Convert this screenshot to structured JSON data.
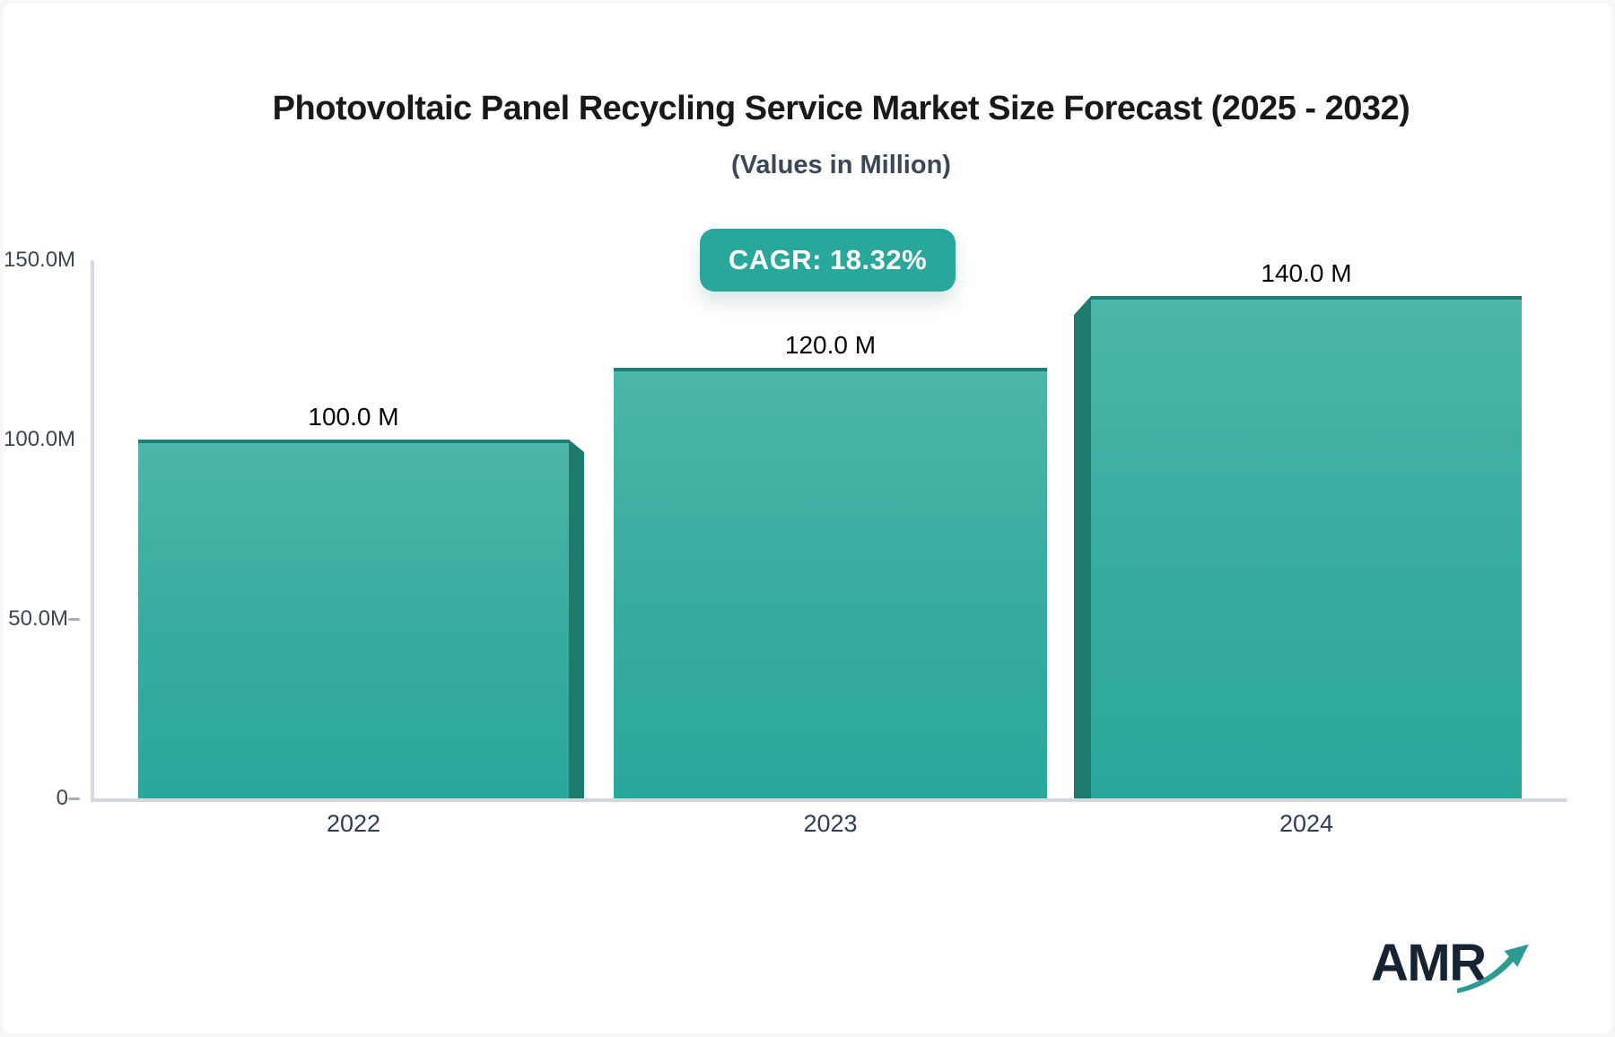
{
  "chart_data": {
    "type": "bar",
    "title": "Photovoltaic Panel Recycling Service Market Size Forecast (2025 - 2032)",
    "subtitle": "(Values in Million)",
    "unit": "Million",
    "cagr_label": "CAGR: 18.32%",
    "cagr_percent": 18.32,
    "categories": [
      "2022",
      "2023",
      "2024"
    ],
    "values": [
      100.0,
      120.0,
      140.0
    ],
    "value_labels": [
      "100.0 M",
      "120.0 M",
      "140.0 M"
    ],
    "xlabel": "",
    "ylabel": "",
    "ylim": [
      0,
      150
    ],
    "yticks": [
      {
        "value": 150,
        "label": "150.0M",
        "tick_mark": false
      },
      {
        "value": 100,
        "label": "100.0M",
        "tick_mark": false
      },
      {
        "value": 50,
        "label": "50.0M",
        "tick_mark": true
      },
      {
        "value": 0,
        "label": "0",
        "tick_mark": true
      }
    ],
    "grid": false,
    "legend": false,
    "colors": {
      "bar_face_top": "#4db6a9",
      "bar_face_bottom": "#2aa89b",
      "bar_top_edge": "#1b8174",
      "bar_side_shade": "#1f7a6e",
      "axis": "#d6d9dd",
      "badge_background": "#2aa79b",
      "badge_text": "#ffffff",
      "tick_label": "#3c4654",
      "value_label": "#050505"
    }
  },
  "branding": {
    "logo_text": "AMR",
    "logo_icon": "growth-arrow-icon",
    "logo_text_color": "#162330",
    "logo_arrow_color": "#2f9a90"
  }
}
